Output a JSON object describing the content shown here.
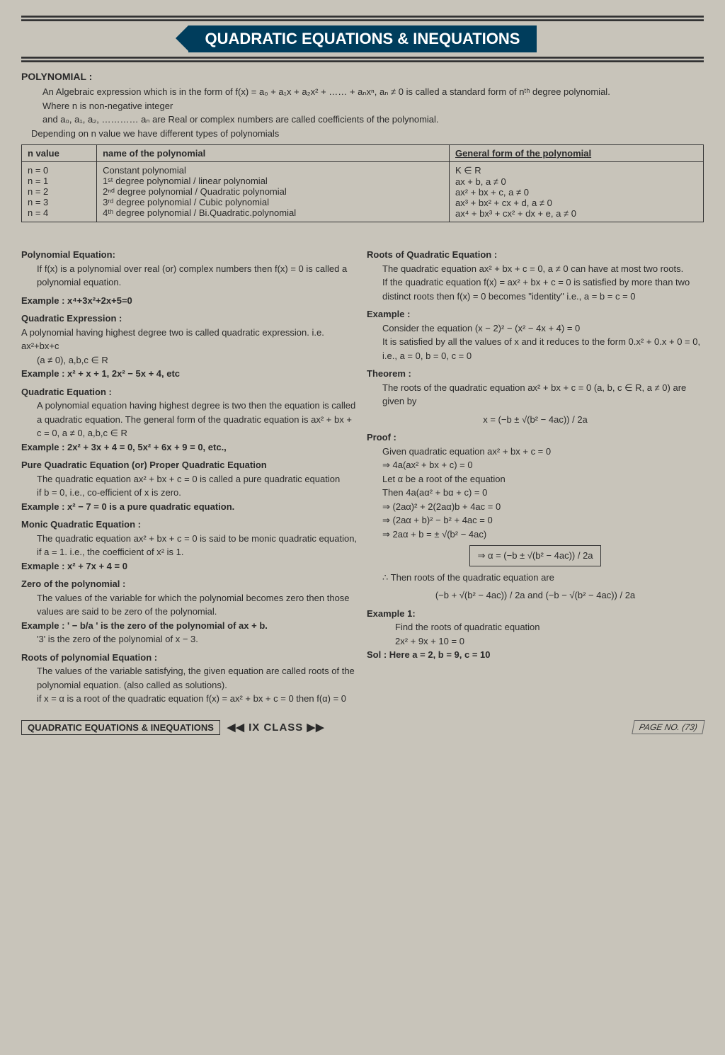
{
  "header": {
    "title": "QUADRATIC EQUATIONS & INEQUATIONS"
  },
  "polynomial": {
    "title": "POLYNOMIAL :",
    "intro1": "An Algebraic expression which is in the form of f(x) = a₀ + a₁x + a₂x² + …… + aₙxⁿ, aₙ ≠ 0 is called a standard form of nᵗʰ degree polynomial.",
    "intro2": "Where n is non-negative integer",
    "intro3": "and a₀, a₁, a₂, ………… aₙ are Real or complex numbers are called coefficients of the polynomial.",
    "intro4": "Depending on n value we have different types of polynomials"
  },
  "table": {
    "headers": [
      "n value",
      "name of the polynomial",
      "General form of the polynomial"
    ],
    "rows": [
      [
        "n = 0",
        "Constant polynomial",
        "K ∈ R"
      ],
      [
        "n = 1",
        "1ˢᵗ degree polynomial / linear polynomial",
        "ax + b,  a ≠ 0"
      ],
      [
        "n = 2",
        "2ⁿᵈ degree polynomial / Quadratic polynomial",
        "ax² + bx + c, a ≠ 0"
      ],
      [
        "n = 3",
        "3ʳᵈ degree polynomial / Cubic polynomial",
        "ax³ + bx² + cx + d, a ≠ 0"
      ],
      [
        "n = 4",
        "4ᵗʰ degree polynomial / Bi.Quadratic.polynomial",
        "ax⁴ + bx³ + cx² + dx + e, a ≠ 0"
      ]
    ]
  },
  "left": {
    "polyEqH": "Polynomial Equation:",
    "polyEq1": "If f(x) is a polynomial over real (or) complex numbers then f(x) = 0 is called a polynomial equation.",
    "ex1": "Example : x⁴+3x²+2x+5=0",
    "quadExprH": "Quadratic Expression :",
    "quadExpr1": "A polynomial having highest degree two is called quadratic expression. i.e. ax²+bx+c",
    "quadExpr2": "(a ≠ 0), a,b,c ∈ R",
    "ex2": "Example : x² + x + 1, 2x² − 5x + 4, etc",
    "quadEqH": "Quadratic Equation :",
    "quadEq1": "A polynomial equation having highest degree is two then the equation is called a quadratic equation. The general form of the quadratic equation is ax² + bx + c = 0, a ≠ 0, a,b,c ∈ R",
    "ex3": "Example : 2x² + 3x + 4 = 0, 5x² + 6x + 9 = 0, etc.,",
    "pureH": "Pure Quadratic Equation (or) Proper Quadratic Equation",
    "pure1": "The quadratic equation ax² + bx + c = 0 is called a pure quadratic equation",
    "pure2": "if b = 0, i.e., co-efficient of x is zero.",
    "ex4": "Example :  x² − 7 = 0 is a pure quadratic equation.",
    "monicH": "Monic Quadratic Equation :",
    "monic1": "The quadratic equation ax² + bx + c = 0 is said to be monic quadratic equation, if a = 1. i.e., the coefficient of x² is 1.",
    "ex5": "Exmaple : x² + 7x + 4 = 0",
    "zeroH": "Zero of the polynomial :",
    "zero1": "The values of the variable for which the polynomial becomes zero then those values are said to be zero of the polynomial.",
    "ex6a": "Example : ' − b/a ' is the zero of the polynomial of ax + b.",
    "ex6b": "'3' is the zero of the polynomial of x − 3.",
    "rootsH": "Roots of polynomial Equation :",
    "roots1": "The values of the variable satisfying, the given equation are called roots of the polynomial equation. (also called as solutions).",
    "roots2": "if x = α is a root of the quadratic equation f(x) = ax² + bx + c = 0 then f(α) = 0"
  },
  "right": {
    "rqH": "Roots of Quadratic Equation :",
    "rq1": "The quadratic equation ax² + bx + c = 0, a ≠ 0 can have at most two roots.",
    "rq2": "If the quadratic equation f(x) = ax² + bx + c = 0 is satisfied by more than two distinct roots then f(x) = 0 becomes \"identity\" i.e., a = b = c = 0",
    "exH": "Example :",
    "ex1": "Consider the equation (x − 2)² − (x² − 4x + 4) = 0",
    "ex2": "It is satisfied by all the values of x and it reduces to the form 0.x² + 0.x + 0 = 0, i.e., a = 0, b = 0, c = 0",
    "thmH": "Theorem :",
    "thm1": "The roots of the quadratic equation ax² + bx + c = 0 (a, b, c ∈ R, a ≠ 0) are given by",
    "formula1": "x = (−b ± √(b² − 4ac)) / 2a",
    "proofH": "Proof :",
    "p1": "Given quadratic equation ax² + bx + c = 0",
    "p2": "⇒ 4a(ax² + bx + c) = 0",
    "p3": "Let α be a root of the equation",
    "p4": "Then 4a(aα² + bα + c) = 0",
    "p5": "⇒ (2aα)² + 2(2aα)b + 4ac = 0",
    "p6": "⇒ (2aα + b)² − b² + 4ac = 0",
    "p7": "⇒ 2aα + b = ± √(b² − 4ac)",
    "formula2": "⇒  α = (−b ± √(b² − 4ac)) / 2a",
    "concl": "∴ Then roots of the quadratic equation are",
    "formula3": "(−b + √(b² − 4ac)) / 2a   and   (−b − √(b² − 4ac)) / 2a",
    "ex2H": "Example 1:",
    "ex2a": "Find the roots of quadratic equation",
    "ex2b": "2x² + 9x + 10 = 0",
    "sol": "Sol :   Here a = 2, b = 9, c = 10"
  },
  "footer": {
    "box": "QUADRATIC EQUATIONS & INEQUATIONS",
    "class": "◀◀ IX CLASS ▶▶",
    "page": "PAGE NO. (73)"
  }
}
